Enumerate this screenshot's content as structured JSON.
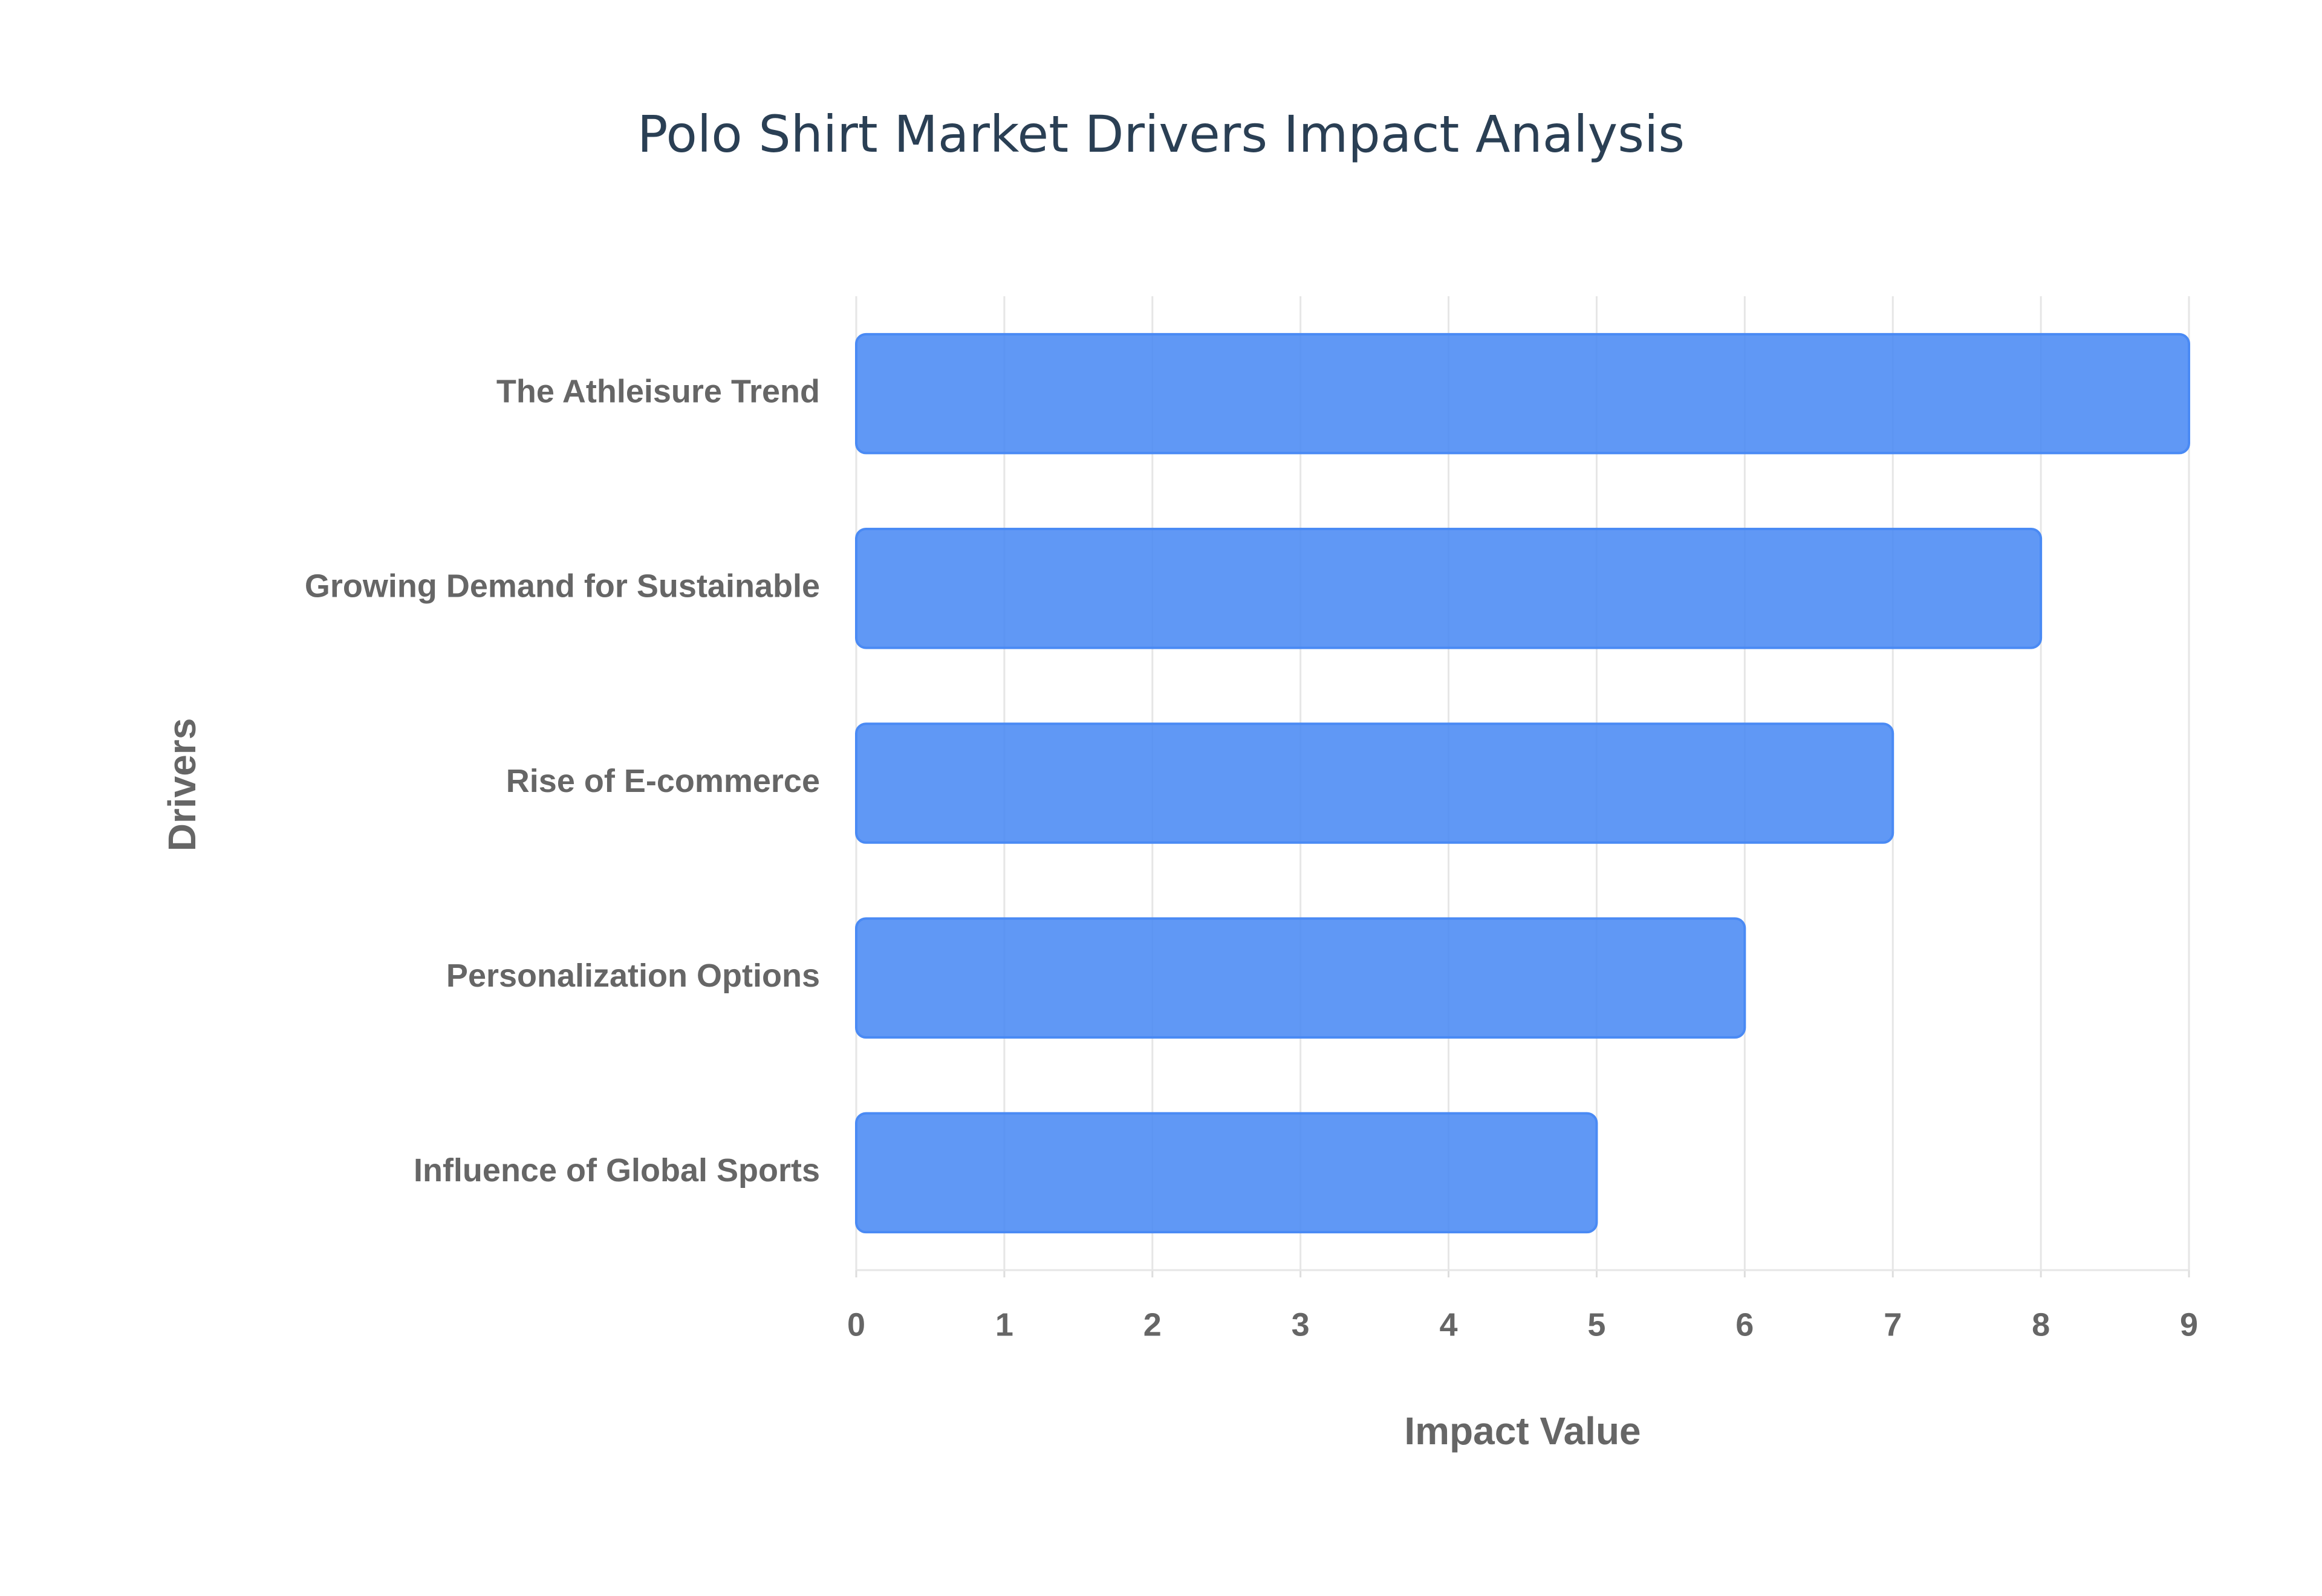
{
  "chart_data": {
    "type": "bar",
    "orientation": "horizontal",
    "title": "Polo Shirt Market Drivers Impact Analysis",
    "categories": [
      "The Athleisure Trend",
      "Growing Demand for Sustainable",
      "Rise of E-commerce",
      "Personalization Options",
      "Influence of Global Sports"
    ],
    "values": [
      9,
      8,
      7,
      6,
      5
    ],
    "color": "#4a8af4",
    "xlabel": "Impact Value",
    "ylabel": "Drivers",
    "xlim": [
      0,
      9
    ],
    "xticks": [
      0,
      1,
      2,
      3,
      4,
      5,
      6,
      7,
      8,
      9
    ],
    "grid": true
  }
}
